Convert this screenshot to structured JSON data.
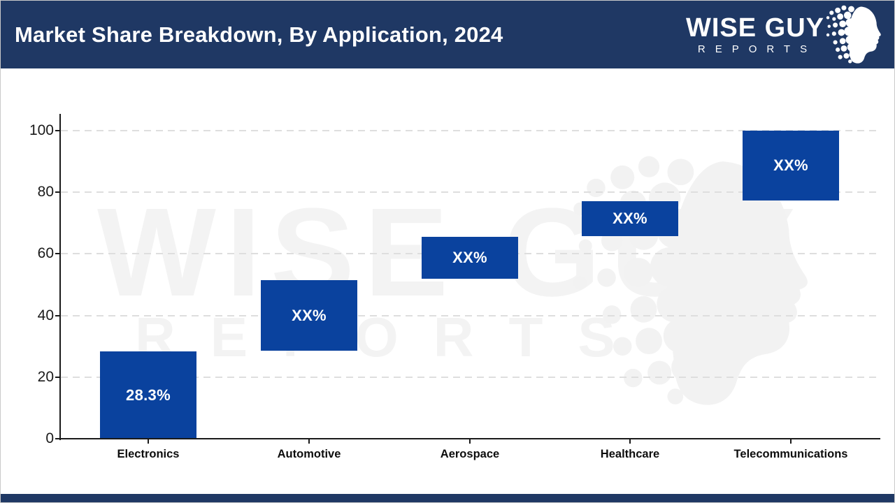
{
  "header": {
    "title": "Market Share Breakdown, By Application, 2024",
    "logo": {
      "line1": "WISE GUY",
      "line2": "REPORTS"
    }
  },
  "watermark": {
    "line1": "WISE GUY",
    "line2": "REPORTS"
  },
  "colors": {
    "header_bg": "#1F3864",
    "bar": "#0A429E",
    "grid": "#DEDEDE",
    "axis": "#1A1A1A",
    "watermark": "#F3F3F3",
    "bar_label_text": "#FFFFFF"
  },
  "chart_data": {
    "type": "bar",
    "subtype": "waterfall",
    "title": "Market Share Breakdown, By Application, 2024",
    "categories": [
      "Electronics",
      "Automotive",
      "Aerospace",
      "Healthcare",
      "Telecommunications"
    ],
    "series": [
      {
        "name": "Market Share",
        "segments": [
          {
            "start": 0,
            "end": 28.3,
            "label": "28.3%"
          },
          {
            "start": 28.5,
            "end": 51.5,
            "label": "XX%"
          },
          {
            "start": 52.0,
            "end": 65.5,
            "label": "XX%"
          },
          {
            "start": 65.8,
            "end": 77.2,
            "label": "XX%"
          },
          {
            "start": 77.3,
            "end": 100,
            "label": "XX%"
          }
        ]
      }
    ],
    "xlabel": "",
    "ylabel": "",
    "ylim": [
      0,
      100
    ],
    "yticks": [
      0,
      20,
      40,
      60,
      80,
      100
    ],
    "grid": "horizontal-dashed",
    "legend": "none"
  }
}
